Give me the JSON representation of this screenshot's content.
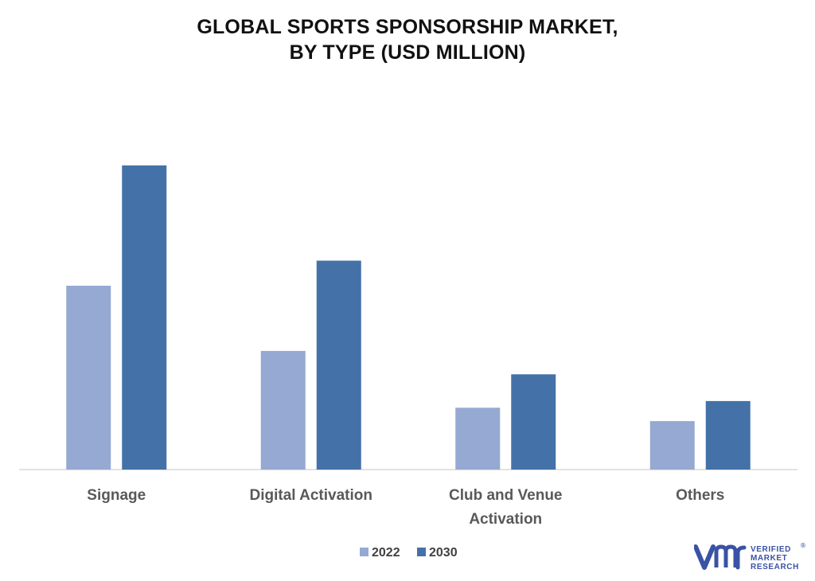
{
  "title_lines": [
    "GLOBAL SPORTS SPONSORSHIP MARKET,",
    "BY TYPE (USD MILLION)"
  ],
  "chart_data": {
    "type": "bar",
    "title": "GLOBAL SPORTS SPONSORSHIP MARKET, BY TYPE (USD MILLION)",
    "categories": [
      [
        "Signage"
      ],
      [
        "Digital Activation"
      ],
      [
        "Club and Venue",
        "Activation"
      ],
      [
        "Others"
      ]
    ],
    "series": [
      {
        "name": "2022",
        "color": "#95a9d2",
        "values": [
          55,
          35.5,
          18.5,
          14.5
        ]
      },
      {
        "name": "2030",
        "color": "#4472a8",
        "values": [
          91,
          62.5,
          28.5,
          20.5
        ]
      }
    ],
    "ylim": [
      0,
      100
    ],
    "y_axis_visible": false,
    "grid": false,
    "legend_position": "bottom-center",
    "baseline_color": "#d9d9d9"
  },
  "brand": {
    "lines": [
      "VERIFIED",
      "MARKET",
      "RESEARCH"
    ],
    "registered": "®",
    "logo_icon": "vmr-logo-icon",
    "colors": {
      "mark": "#3a52a5"
    }
  }
}
